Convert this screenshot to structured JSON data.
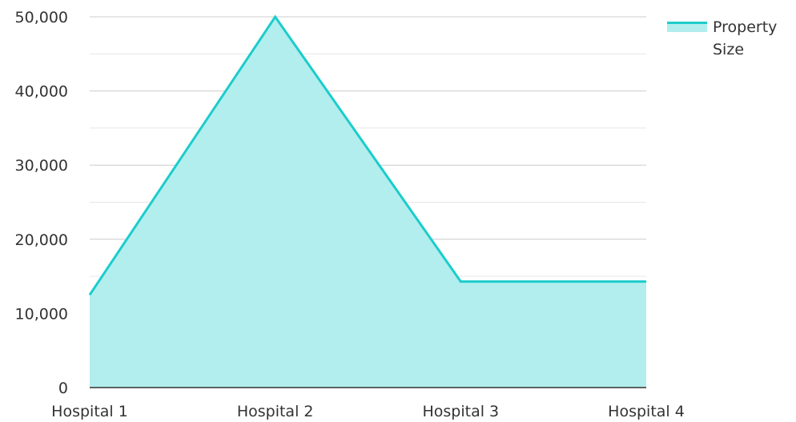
{
  "chart_data": {
    "type": "area",
    "categories": [
      "Hospital 1",
      "Hospital 2",
      "Hospital 3",
      "Hospital 4"
    ],
    "series": [
      {
        "name": "Property Size",
        "values": [
          12500,
          50000,
          14300,
          14300
        ]
      }
    ],
    "yticks": [
      "0",
      "10,000",
      "20,000",
      "30,000",
      "40,000",
      "50,000"
    ],
    "ylim": [
      0,
      50000
    ],
    "grid": true,
    "legend_position": "top-right",
    "colors": {
      "line": "#1ccccc",
      "fill": "#b2eeed",
      "grid_major": "#cccccc",
      "grid_minor": "#e6e6e6",
      "axis": "#333333"
    }
  }
}
